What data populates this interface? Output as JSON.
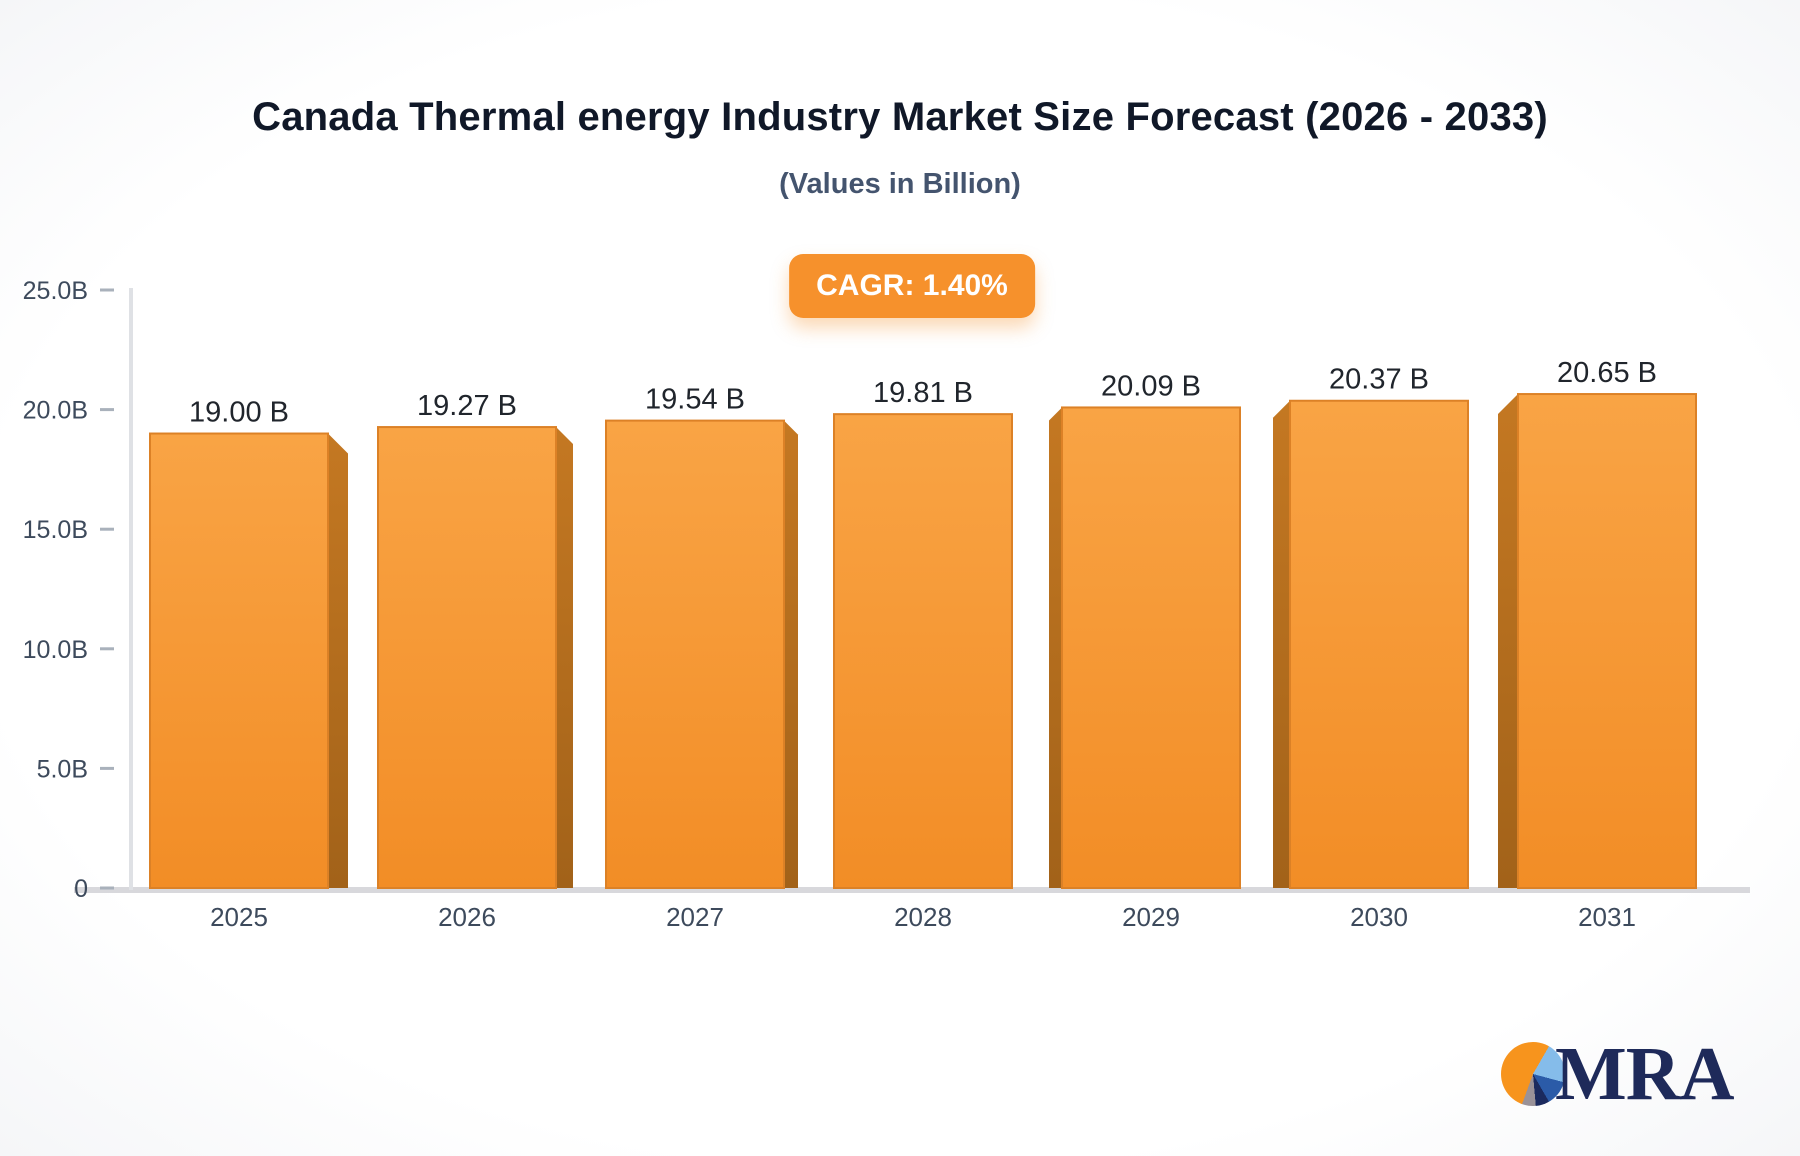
{
  "header": {
    "cagr_badge": "CAGR: 1.40%"
  },
  "logo": {
    "text": "MRA"
  },
  "colors": {
    "title": "#101828",
    "subtitle": "#44546E",
    "badge_bg": "#F6912C",
    "badge_text": "#FFFFFF",
    "bar_face_top": "#F9A445",
    "bar_face_bottom": "#F28D26",
    "bar_face_stroke": "#DC8126",
    "bar_side_top": "#C47822",
    "bar_side_bottom": "#A26219",
    "axis_line": "#DFE1E5",
    "baseline": "#D8D8DC",
    "tick": "#A9B1BB",
    "axis_label": "#3D4A5C",
    "value_label": "#20252C",
    "logo_navy": "#1E2A5A",
    "logo_orange": "#F7941D",
    "logo_lightblue": "#85BCEA",
    "logo_blue": "#2B5BA8",
    "logo_gray": "#9A9298"
  },
  "chart_data": {
    "type": "bar",
    "style": "3d-perspective",
    "title": "Canada Thermal energy Industry Market Size Forecast (2026 - 2033)",
    "subtitle": "(Values in Billion)",
    "annotation": "CAGR: 1.40%",
    "categories": [
      "2025",
      "2026",
      "2027",
      "2028",
      "2029",
      "2030",
      "2031"
    ],
    "values": [
      19.0,
      19.27,
      19.54,
      19.81,
      20.09,
      20.37,
      20.65
    ],
    "bar_labels": [
      "19.00 B",
      "19.27 B",
      "19.54 B",
      "19.81 B",
      "20.09 B",
      "20.37 B",
      "20.65 B"
    ],
    "unit": "B",
    "xlabel": "",
    "ylabel": "",
    "ylim": [
      0,
      25
    ],
    "yticks": [
      {
        "v": 25,
        "label": "25.0B"
      },
      {
        "v": 20,
        "label": "20.0B"
      },
      {
        "v": 15,
        "label": "15.0B"
      },
      {
        "v": 10,
        "label": "10.0B"
      },
      {
        "v": 5,
        "label": "5.0B"
      },
      {
        "v": 0,
        "label": "0"
      }
    ],
    "grid": false,
    "legend": false,
    "bar_color": "#F6922E"
  }
}
